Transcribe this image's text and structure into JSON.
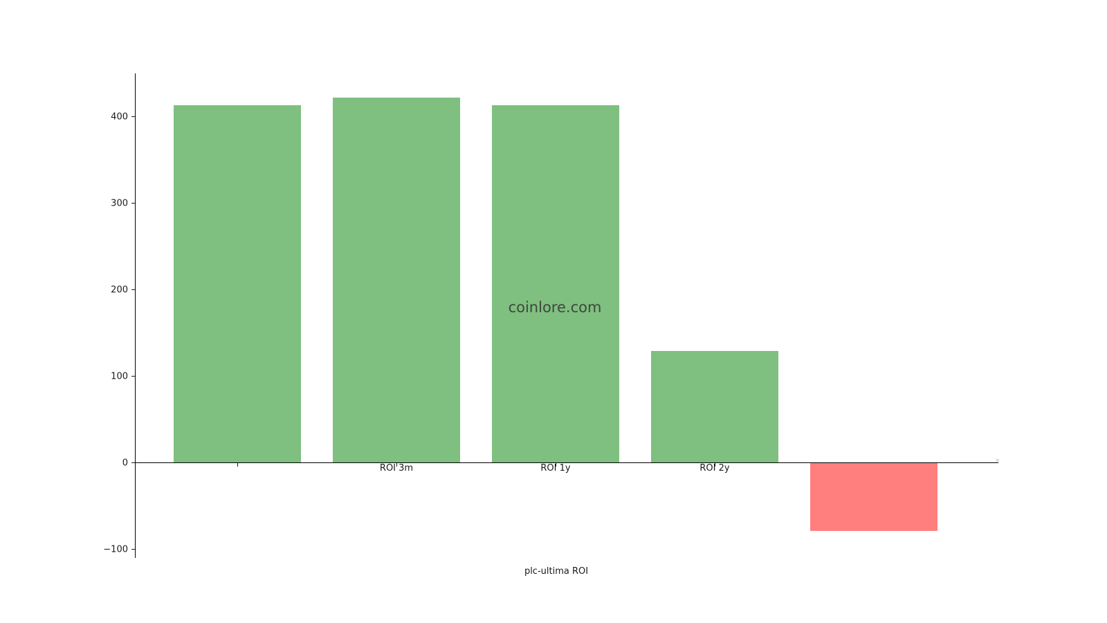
{
  "chart_data": {
    "type": "bar",
    "categories": [
      "",
      "ROI 3m",
      "ROI 1y",
      "ROI 2y",
      ""
    ],
    "values": [
      413,
      422,
      413,
      129,
      -79
    ],
    "title": "",
    "xlabel": "plc-ultima ROI",
    "ylabel": "",
    "yticks": [
      400,
      300,
      200,
      100,
      0,
      -100
    ],
    "ylim": [
      -110,
      450
    ],
    "x_ticks_visible": [
      true,
      true,
      true,
      true,
      false
    ],
    "grid": false,
    "legend": "none",
    "positive_color": "#7fbf7f",
    "negative_color": "#ff7f7f"
  },
  "watermark": {
    "text": "coinlore.com",
    "color": "#333333"
  },
  "axis": {
    "color": "#000000",
    "tick_label_color": "#1a1a1a",
    "end_mark": "×"
  }
}
